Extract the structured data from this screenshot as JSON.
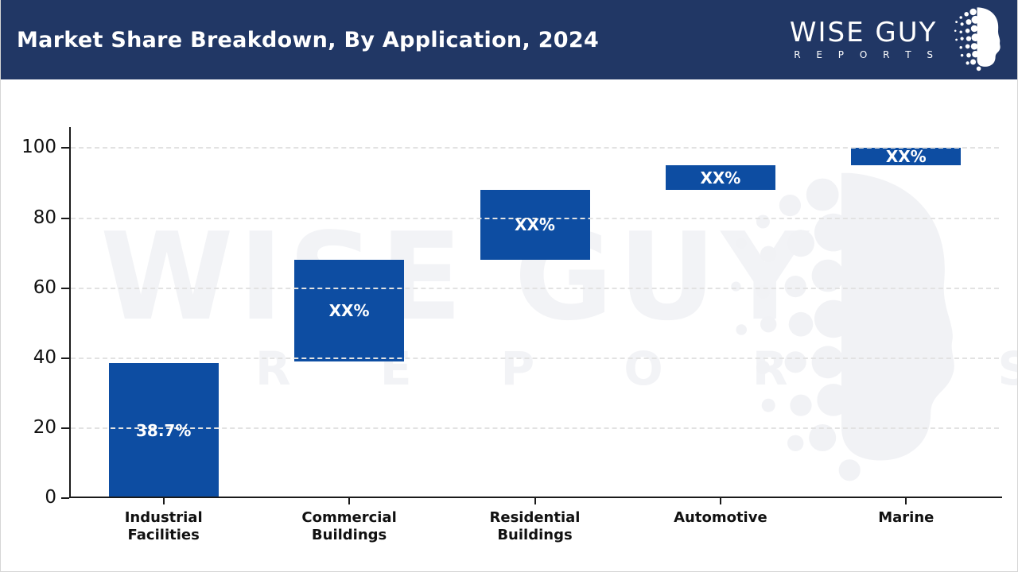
{
  "header": {
    "title": "Market Share Breakdown, By Application, 2024",
    "background": "#213765",
    "logo": {
      "line1": "WISE GUY",
      "line2": "R E P O R T S"
    }
  },
  "watermark": {
    "line1": "WISE GUY",
    "line2": "R E P O R T S"
  },
  "chart_data": {
    "type": "bar",
    "subtype": "floating-waterfall",
    "title": "Market Share Breakdown, By Application, 2024",
    "categories": [
      "Industrial Facilities",
      "Commercial Buildings",
      "Residential Buildings",
      "Automotive",
      "Marine"
    ],
    "bars": [
      {
        "category": "Industrial Facilities",
        "label_lines": [
          "Industrial",
          "Facilities"
        ],
        "start": 0,
        "end": 38.7,
        "label": "38.7%"
      },
      {
        "category": "Commercial Buildings",
        "label_lines": [
          "Commercial",
          "Buildings"
        ],
        "start": 39,
        "end": 68,
        "label": "XX%"
      },
      {
        "category": "Residential Buildings",
        "label_lines": [
          "Residential",
          "Buildings"
        ],
        "start": 68,
        "end": 88,
        "label": "XX%"
      },
      {
        "category": "Automotive",
        "label_lines": [
          "Automotive"
        ],
        "start": 88,
        "end": 95,
        "label": "XX%"
      },
      {
        "category": "Marine",
        "label_lines": [
          "Marine"
        ],
        "start": 95,
        "end": 100,
        "label": "XX%"
      }
    ],
    "yticks": [
      0,
      20,
      40,
      60,
      80,
      100
    ],
    "ylim": [
      0,
      106
    ],
    "xlabel": "",
    "ylabel": "",
    "bar_color": "#0d4da2",
    "bar_label_color": "#ffffff",
    "grid": "horizontal-dashed",
    "legend": "none"
  }
}
